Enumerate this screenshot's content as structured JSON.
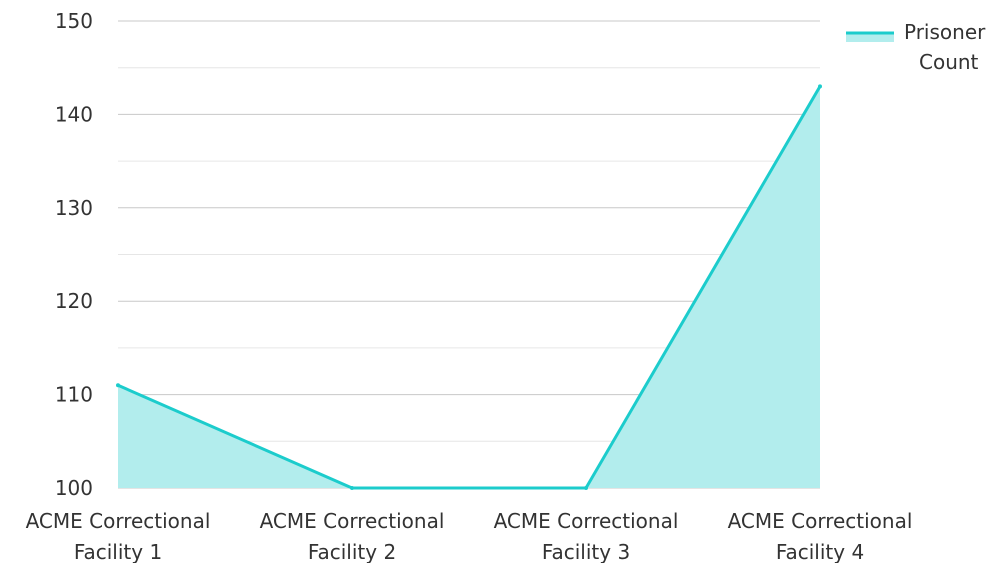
{
  "chart_data": {
    "type": "area",
    "title": "",
    "xlabel": "",
    "ylabel": "",
    "categories": [
      [
        "ACME Correctional",
        "Facility 1"
      ],
      [
        "ACME Correctional",
        "Facility 2"
      ],
      [
        "ACME Correctional",
        "Facility 3"
      ],
      [
        "ACME Correctional",
        "Facility 4"
      ]
    ],
    "series": [
      {
        "name_lines": [
          "Prisoner",
          "Count"
        ],
        "values": [
          111,
          100,
          100,
          143
        ],
        "line_color": "#1ccccc",
        "fill_color": "#b2eded"
      }
    ],
    "ylim": [
      100,
      150
    ],
    "y_ticks": [
      100,
      110,
      120,
      130,
      140,
      150
    ],
    "grid": true,
    "minor_grid": true,
    "legend_position": "top-right",
    "grid_color": "#c8c8c8",
    "minor_grid_color": "#e6e6e6"
  }
}
